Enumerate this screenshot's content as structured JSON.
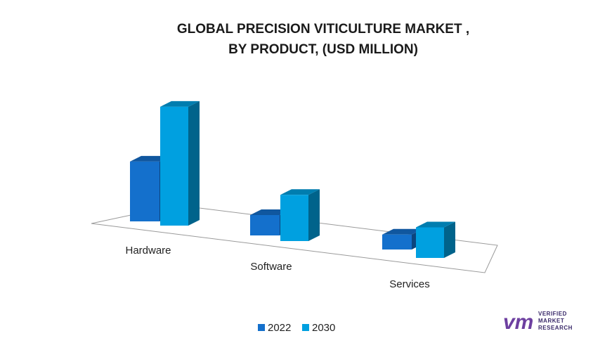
{
  "chart_data": {
    "type": "bar",
    "title_lines": [
      "GLOBAL PRECISION VITICULTURE MARKET ,",
      "BY PRODUCT, (USD MILLION)"
    ],
    "categories": [
      "Hardware",
      "Software",
      "Services"
    ],
    "series": [
      {
        "name": "2022",
        "values": [
          88,
          30,
          22
        ],
        "color": "#1470cc"
      },
      {
        "name": "2030",
        "values": [
          175,
          68,
          45
        ],
        "color": "#00a0e0"
      }
    ],
    "ylim": [
      0,
      180
    ],
    "grid": false,
    "legend_position": "bottom-center",
    "three_d": true
  },
  "branding": {
    "logo_mark": "vm",
    "logo_lines": [
      "VERIFIED",
      "MARKET",
      "RESEARCH"
    ]
  }
}
